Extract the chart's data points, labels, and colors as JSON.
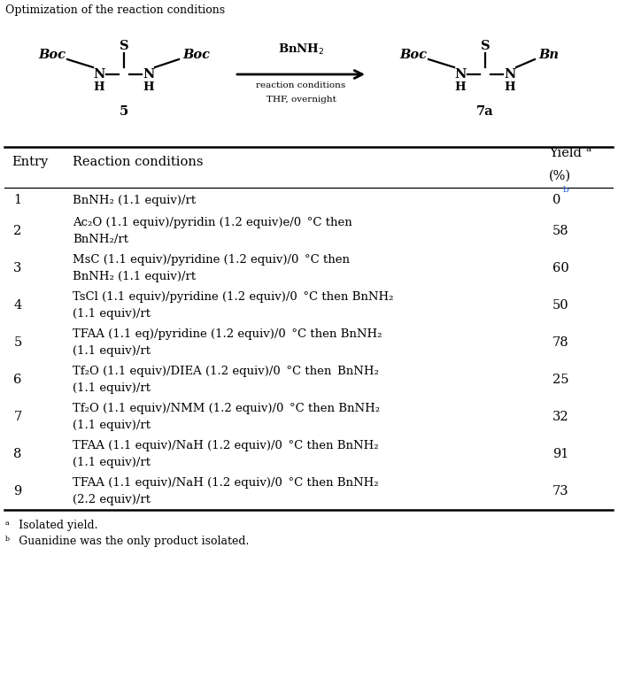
{
  "title": "Optimization of the reaction conditions",
  "bg_color": "#ffffff",
  "entries": [
    {
      "num": "1",
      "line1": "BnNH₂ (1.1 equiv)/rt",
      "line2": "",
      "yield_main": "0",
      "yield_sup": "b",
      "yield_sup_color": "#1a56db"
    },
    {
      "num": "2",
      "line1": "Ac₂O (1.1 equiv)/pyridin (1.2 equiv)e/0 °C then",
      "line2": "BnNH₂/rt",
      "yield_main": "58",
      "yield_sup": "",
      "yield_sup_color": "#000000"
    },
    {
      "num": "3",
      "line1": "MsC (1.1 equiv)/pyridine (1.2 equiv)/0 °C then",
      "line2": "BnNH₂ (1.1 equiv)/rt",
      "yield_main": "60",
      "yield_sup": "",
      "yield_sup_color": "#000000"
    },
    {
      "num": "4",
      "line1": "TsCl (1.1 equiv)/pyridine (1.2 equiv)/0 °C then BnNH₂",
      "line2": "(1.1 equiv)/rt",
      "yield_main": "50",
      "yield_sup": "",
      "yield_sup_color": "#000000"
    },
    {
      "num": "5",
      "line1": "TFAA (1.1 eq)/pyridine (1.2 equiv)/0 °C then BnNH₂",
      "line2": "(1.1 equiv)/rt",
      "yield_main": "78",
      "yield_sup": "",
      "yield_sup_color": "#000000"
    },
    {
      "num": "6",
      "line1": "Tf₂O (1.1 equiv)/DIEA (1.2 equiv)/0 °C then BnNH₂",
      "line2": "(1.1 equiv)/rt",
      "yield_main": "25",
      "yield_sup": "",
      "yield_sup_color": "#000000"
    },
    {
      "num": "7",
      "line1": "Tf₂O (1.1 equiv)/NMM (1.2 equiv)/0 °C then BnNH₂",
      "line2": "(1.1 equiv)/rt",
      "yield_main": "32",
      "yield_sup": "",
      "yield_sup_color": "#000000"
    },
    {
      "num": "8",
      "line1": "TFAA (1.1 equiv)/NaH (1.2 equiv)/0 °C then BnNH₂",
      "line2": "(1.1 equiv)/rt",
      "yield_main": "91",
      "yield_sup": "",
      "yield_sup_color": "#000000"
    },
    {
      "num": "9",
      "line1": "TFAA (1.1 equiv)/NaH (1.2 equiv)/0 °C then BnNH₂",
      "line2": "(2.2 equiv)/rt",
      "yield_main": "73",
      "yield_sup": "",
      "yield_sup_color": "#000000"
    }
  ],
  "footnote_a": "ᵃ  Isolated yield.",
  "footnote_b": "ᵇ  Guanidine was the only product isolated.",
  "scheme_arrow_label1": "BnNH$_2$",
  "scheme_arrow_label2": "reaction conditions",
  "scheme_arrow_label3": "THF, overnight",
  "label5": "5",
  "label7a": "7a"
}
